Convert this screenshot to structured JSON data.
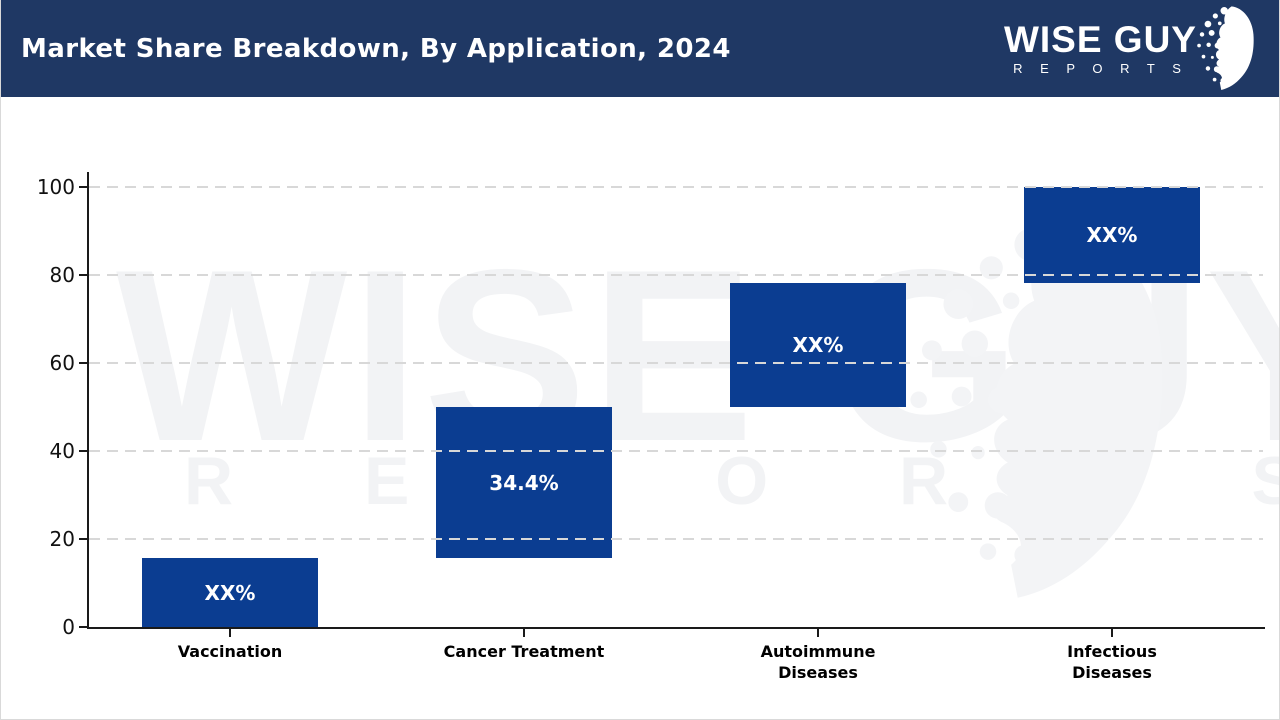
{
  "header": {
    "title": "Market Share Breakdown, By Application, 2024",
    "logo": {
      "wordmark": "WISE GUY",
      "subtext": "R E P O R T S"
    }
  },
  "watermark": {
    "wordmark": "WISE GUY",
    "subtext": "R E P O R T S"
  },
  "chart_data": {
    "type": "bar",
    "subtype": "floating-waterfall",
    "title": "Market Share Breakdown, By Application, 2024",
    "categories": [
      "Vaccination",
      "Cancer Treatment",
      "Autoimmune\nDiseases",
      "Infectious\nDiseases"
    ],
    "segments": [
      {
        "category": "Vaccination",
        "start": 0,
        "end": 15.6,
        "label": "XX%"
      },
      {
        "category": "Cancer Treatment",
        "start": 15.6,
        "end": 50,
        "label": "34.4%"
      },
      {
        "category": "Autoimmune Diseases",
        "start": 50,
        "end": 78.2,
        "label": "XX%"
      },
      {
        "category": "Infectious Diseases",
        "start": 78.2,
        "end": 100,
        "label": "XX%"
      }
    ],
    "yticks": [
      0,
      20,
      40,
      60,
      80,
      100
    ],
    "ylim": [
      0,
      104
    ],
    "xlabel": "",
    "ylabel": "",
    "grid": "horizontal dashed",
    "legend_position": "none",
    "bar_color": "#0B3D91"
  },
  "colors": {
    "header_bg": "#1F3864",
    "bar": "#0B3D91",
    "grid": "#D8D8D8",
    "axis": "#1A1A1A",
    "bar_label_text": "#FFFFFF",
    "watermark": "#F2F3F5"
  }
}
